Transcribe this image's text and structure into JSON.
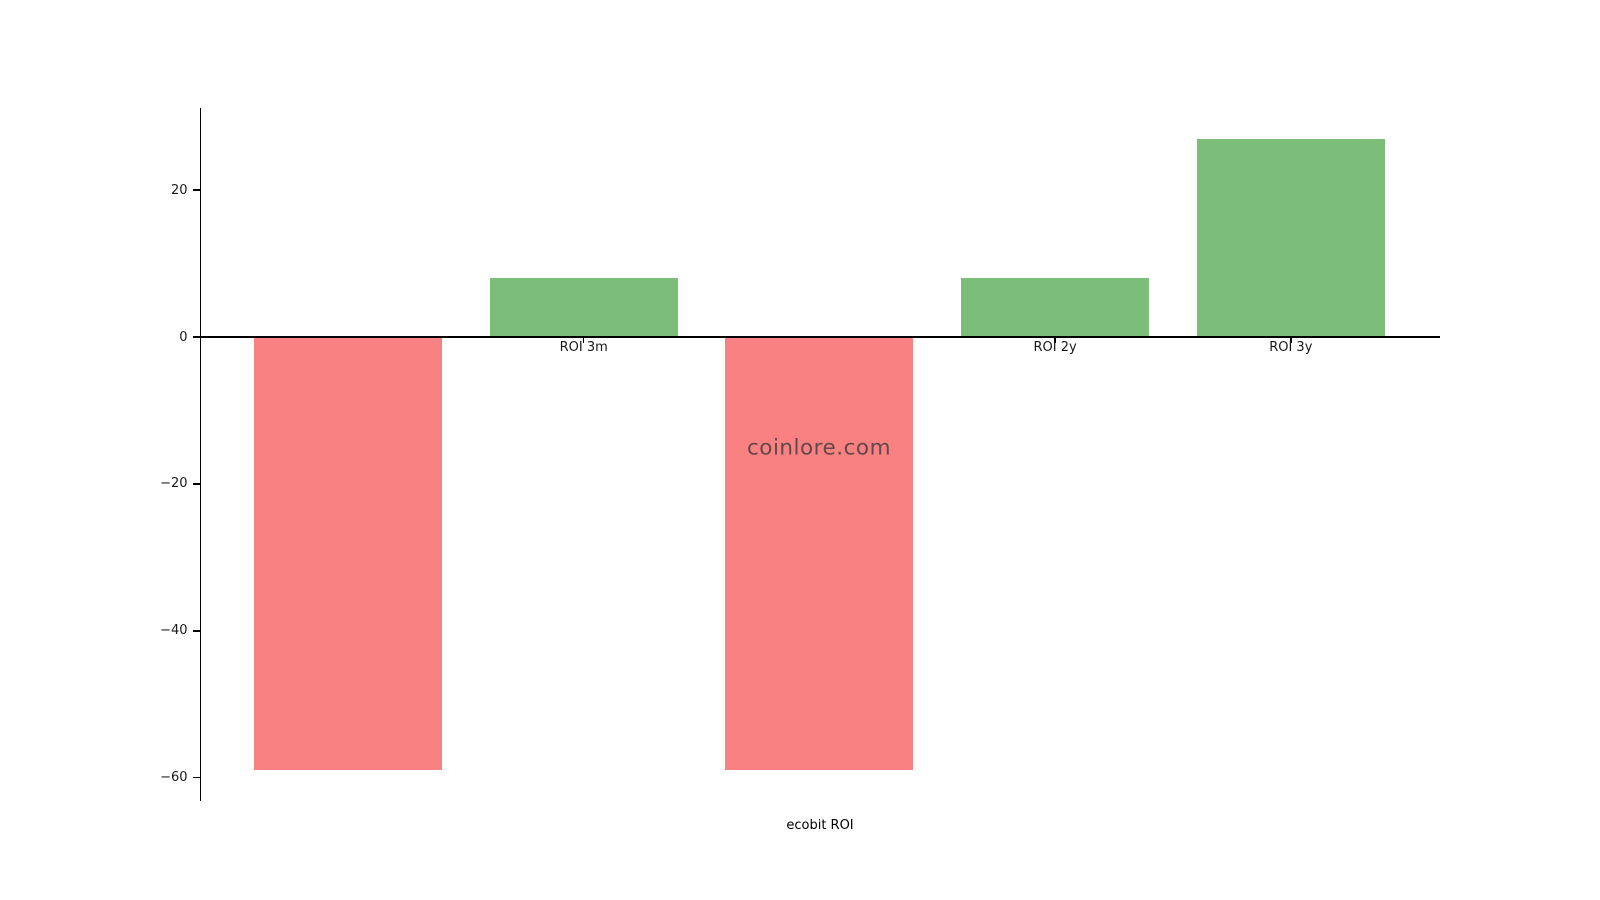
{
  "watermark": "coinlore.com",
  "chart_data": {
    "type": "bar",
    "title": "",
    "xlabel": "ecobit ROI",
    "ylabel": "",
    "categories": [
      "",
      "ROI 3m",
      "",
      "ROI 2y",
      "ROI 3y"
    ],
    "values": [
      -58.9,
      8.0,
      -58.9,
      8.0,
      27.0
    ],
    "yticks": [
      {
        "value": 20,
        "label": "20"
      },
      {
        "value": 0,
        "label": "0"
      },
      {
        "value": -20,
        "label": "−20"
      },
      {
        "value": -40,
        "label": "−40"
      },
      {
        "value": -60,
        "label": "−60"
      }
    ],
    "ylim": [
      -63,
      31
    ],
    "grid": false,
    "legend": null,
    "colors": {
      "positive": "#7dbd7a",
      "negative": "#fa8181",
      "axis": "#000000"
    }
  }
}
